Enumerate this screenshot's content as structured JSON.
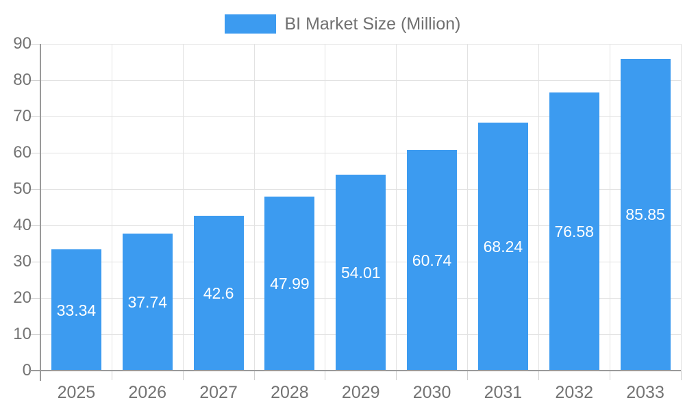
{
  "chart_data": {
    "type": "bar",
    "title": "",
    "legend": {
      "label": "BI Market Size (Million)",
      "position": "top"
    },
    "categories": [
      "2025",
      "2026",
      "2027",
      "2028",
      "2029",
      "2030",
      "2031",
      "2032",
      "2033"
    ],
    "series": [
      {
        "name": "BI Market Size (Million)",
        "values": [
          33.34,
          37.74,
          42.6,
          47.99,
          54.01,
          60.74,
          68.24,
          76.58,
          85.85
        ],
        "labels": [
          "33.34",
          "37.74",
          "42.6",
          "47.99",
          "54.01",
          "60.74",
          "68.24",
          "76.58",
          "85.85"
        ]
      }
    ],
    "xlabel": "",
    "ylabel": "",
    "ylim": [
      0,
      90
    ],
    "y_ticks": [
      0,
      10,
      20,
      30,
      40,
      50,
      60,
      70,
      80,
      90
    ],
    "grid": true,
    "colors": {
      "bar": "#3c9bf0",
      "grid": "#e2e2e2",
      "tick": "#d0d0d0",
      "axis": "#9a9a9a",
      "axis_text": "#737373",
      "legend_text": "#707070",
      "value_text": "#ffffff",
      "background": "#ffffff"
    }
  }
}
